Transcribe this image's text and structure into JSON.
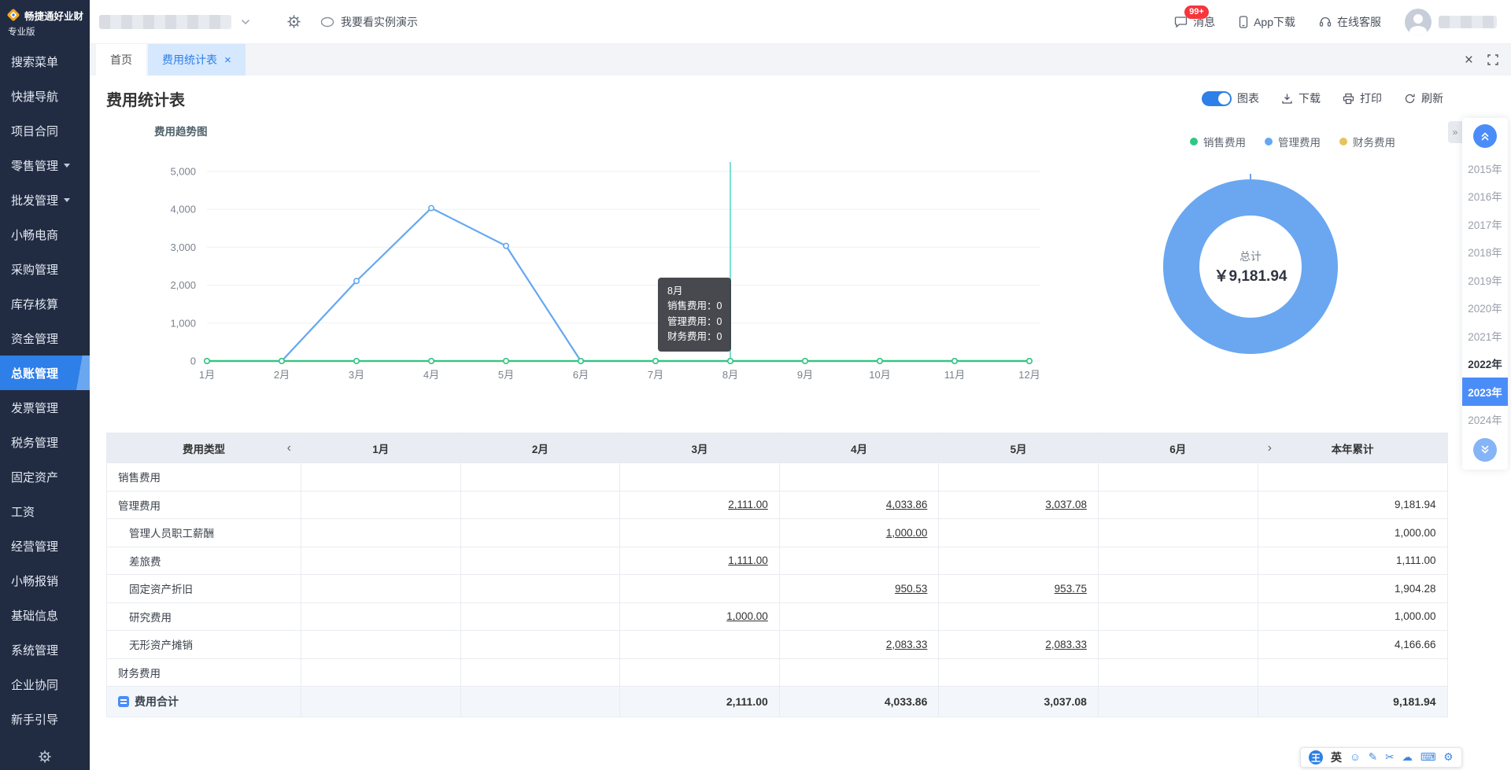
{
  "colors": {
    "accent": "#2e7fe8",
    "sidebar_bg": "#212c43",
    "active_tab_bg": "#d6e8fd",
    "series_green": "#2fc787",
    "series_blue": "#63a8f2",
    "series_yellow": "#e6c35c",
    "tooltip_line_teal": "#4fd6c2",
    "badge_red": "#f5363c",
    "year_selected_blue": "#4b8df8"
  },
  "app": {
    "logo_title": "畅捷通好业财",
    "logo_subtitle": "专业版"
  },
  "topbar": {
    "demo_text": "我要看实例演示",
    "messages_label": "消息",
    "messages_badge": "99+",
    "app_download_label": "App下载",
    "online_service_label": "在线客服"
  },
  "sidebar": {
    "items": [
      {
        "label": "搜索菜单"
      },
      {
        "label": "快捷导航"
      },
      {
        "label": "项目合同"
      },
      {
        "label": "零售管理",
        "expandable": true
      },
      {
        "label": "批发管理",
        "expandable": true
      },
      {
        "label": "小畅电商"
      },
      {
        "label": "采购管理"
      },
      {
        "label": "库存核算"
      },
      {
        "label": "资金管理"
      },
      {
        "label": "总账管理",
        "active": true
      },
      {
        "label": "发票管理"
      },
      {
        "label": "税务管理"
      },
      {
        "label": "固定资产"
      },
      {
        "label": "工资"
      },
      {
        "label": "经营管理"
      },
      {
        "label": "小畅报销"
      },
      {
        "label": "基础信息"
      },
      {
        "label": "系统管理"
      },
      {
        "label": "企业协同"
      },
      {
        "label": "新手引导"
      }
    ]
  },
  "tabs": {
    "items": [
      {
        "label": "首页",
        "active": false,
        "closable": false
      },
      {
        "label": "费用统计表",
        "active": true,
        "closable": true
      }
    ]
  },
  "page": {
    "title": "费用统计表",
    "controls": {
      "chart_toggle": "图表",
      "download": "下载",
      "print": "打印",
      "refresh": "刷新"
    }
  },
  "chart_data": [
    {
      "type": "line",
      "title": "费用趋势图",
      "categories": [
        "1月",
        "2月",
        "3月",
        "4月",
        "5月",
        "6月",
        "7月",
        "8月",
        "9月",
        "10月",
        "11月",
        "12月"
      ],
      "series": [
        {
          "name": "销售费用",
          "color": "#2fc787",
          "values": [
            0,
            0,
            0,
            0,
            0,
            0,
            0,
            0,
            0,
            0,
            0,
            0
          ]
        },
        {
          "name": "管理费用",
          "color": "#63a8f2",
          "values": [
            0,
            0,
            2111.0,
            4033.86,
            3037.08,
            0,
            0,
            0,
            0,
            0,
            0,
            0
          ]
        },
        {
          "name": "财务费用",
          "color": "#e6c35c",
          "values": [
            0,
            0,
            0,
            0,
            0,
            0,
            0,
            0,
            0,
            0,
            0,
            0
          ]
        }
      ],
      "ylim": [
        0,
        5000
      ],
      "ytick_step": 1000,
      "grid": true,
      "legend_position": "top-right",
      "tooltip": {
        "index": 7,
        "title": "8月",
        "lines": [
          "销售费用：0",
          "管理费用：0",
          "财务费用：0"
        ]
      }
    },
    {
      "type": "pie",
      "donut": true,
      "center_label": "总计",
      "center_value": "￥9,181.94",
      "slices": [
        {
          "name": "管理费用",
          "value": 9181.94,
          "color": "#6aa7f0"
        }
      ]
    }
  ],
  "year_panel": {
    "years": [
      {
        "label": "2015年"
      },
      {
        "label": "2016年"
      },
      {
        "label": "2017年"
      },
      {
        "label": "2018年"
      },
      {
        "label": "2019年"
      },
      {
        "label": "2020年"
      },
      {
        "label": "2021年"
      },
      {
        "label": "2022年",
        "emphasis": true
      },
      {
        "label": "2023年",
        "selected": true
      },
      {
        "label": "2024年"
      }
    ]
  },
  "table": {
    "columns": [
      "费用类型",
      "1月",
      "2月",
      "3月",
      "4月",
      "5月",
      "6月",
      "本年累计"
    ],
    "rows": [
      {
        "name": "销售费用",
        "indent": 0,
        "cells": [
          "",
          "",
          "",
          "",
          "",
          ""
        ],
        "total": ""
      },
      {
        "name": "管理费用",
        "indent": 0,
        "cells": [
          "",
          "",
          "2,111.00",
          "4,033.86",
          "3,037.08",
          ""
        ],
        "total": "9,181.94"
      },
      {
        "name": "管理人员职工薪酬",
        "indent": 1,
        "cells": [
          "",
          "",
          "",
          "1,000.00",
          "",
          ""
        ],
        "total": "1,000.00"
      },
      {
        "name": "差旅费",
        "indent": 1,
        "cells": [
          "",
          "",
          "1,111.00",
          "",
          "",
          ""
        ],
        "total": "1,111.00"
      },
      {
        "name": "固定资产折旧",
        "indent": 1,
        "cells": [
          "",
          "",
          "",
          "950.53",
          "953.75",
          ""
        ],
        "total": "1,904.28"
      },
      {
        "name": "研究费用",
        "indent": 1,
        "cells": [
          "",
          "",
          "1,000.00",
          "",
          "",
          ""
        ],
        "total": "1,000.00"
      },
      {
        "name": "无形资产摊销",
        "indent": 1,
        "cells": [
          "",
          "",
          "",
          "2,083.33",
          "2,083.33",
          ""
        ],
        "total": "4,166.66"
      },
      {
        "name": "财务费用",
        "indent": 0,
        "cells": [
          "",
          "",
          "",
          "",
          "",
          ""
        ],
        "total": ""
      }
    ],
    "total_row": {
      "name": "费用合计",
      "cells": [
        "",
        "",
        "2,111.00",
        "4,033.86",
        "3,037.08",
        ""
      ],
      "total": "9,181.94"
    }
  },
  "icons": {
    "close": "×",
    "collapse": "»",
    "prev": "‹",
    "next": "›"
  },
  "ime": {
    "logo": "王",
    "lang": "英",
    "icons": [
      {
        "name": "emoji-icon",
        "glyph": "☺"
      },
      {
        "name": "handwriting-pen-icon",
        "glyph": "✎"
      },
      {
        "name": "scissors-icon",
        "glyph": "✂"
      },
      {
        "name": "cloud-icon",
        "glyph": "☁"
      },
      {
        "name": "keyboard-icon",
        "glyph": "⌨"
      },
      {
        "name": "settings-gear-icon",
        "glyph": "⚙"
      }
    ]
  }
}
